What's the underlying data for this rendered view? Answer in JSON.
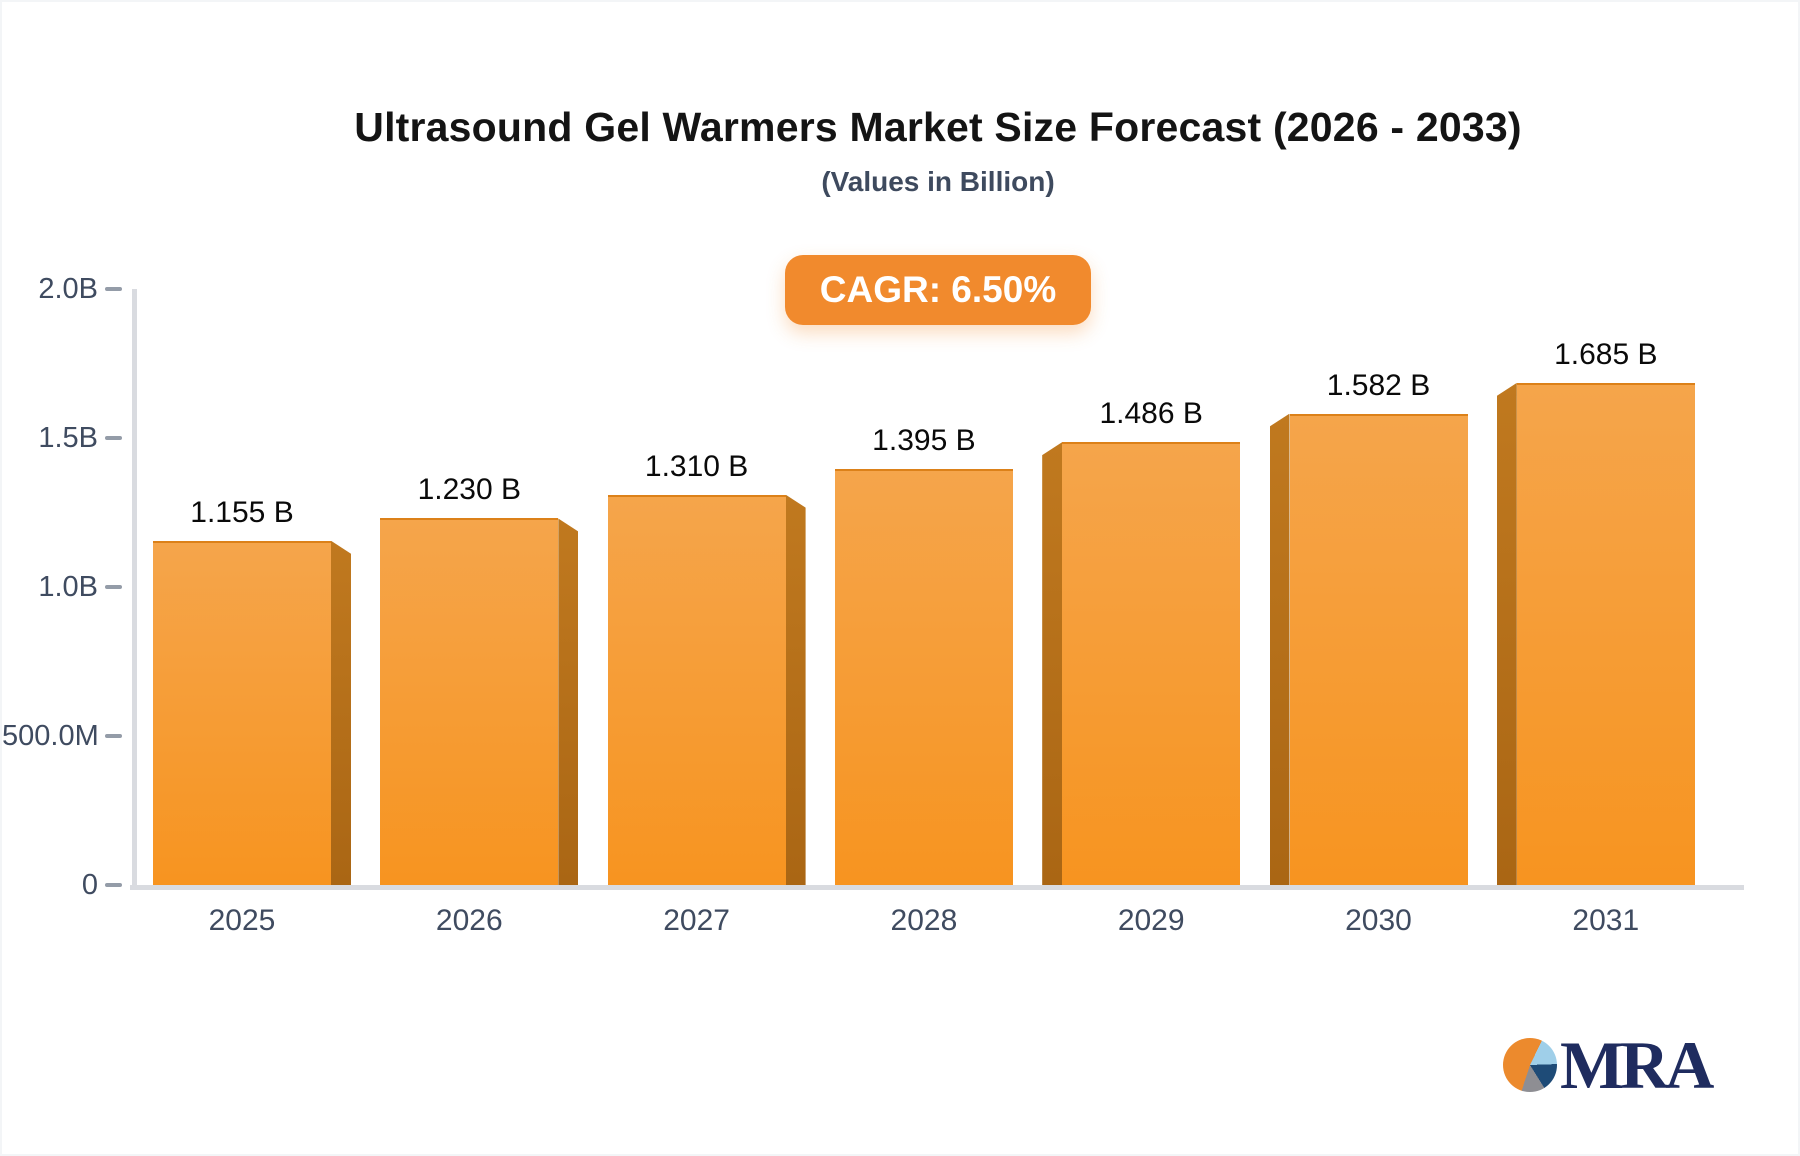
{
  "header": {
    "title": "Ultrasound Gel Warmers Market Size Forecast (2026 - 2033)",
    "subtitle": "(Values in Billion)",
    "cagr_label": "CAGR: 6.50%"
  },
  "branding": {
    "logo_text": "MRA",
    "logo_icon": "pie-chart-icon"
  },
  "chart_data": {
    "type": "bar",
    "title": "Ultrasound Gel Warmers Market Size Forecast (2026 - 2033)",
    "subtitle": "(Values in Billion)",
    "annotation": "CAGR: 6.50%",
    "categories": [
      "2025",
      "2026",
      "2027",
      "2028",
      "2029",
      "2030",
      "2031"
    ],
    "values": [
      1.155,
      1.23,
      1.31,
      1.395,
      1.486,
      1.582,
      1.685
    ],
    "value_labels": [
      "1.155 B",
      "1.230 B",
      "1.310 B",
      "1.395 B",
      "1.486 B",
      "1.582 B",
      "1.685 B"
    ],
    "xlabel": "",
    "ylabel": "",
    "ylim": [
      0,
      2.0
    ],
    "yticks": [
      {
        "value": 2.0,
        "label": "2.0B"
      },
      {
        "value": 1.5,
        "label": "1.5B"
      },
      {
        "value": 1.0,
        "label": "1.0B"
      },
      {
        "value": 0.5,
        "label": "500.0M"
      },
      {
        "value": 0.0,
        "label": "0"
      }
    ],
    "grid": false,
    "legend": false,
    "bar_style_3d": true
  },
  "colors": {
    "background": "#FFFFFF",
    "bar_top": "#F5A54B",
    "bar_bottom": "#F79420",
    "bar_side_top": "#C0791F",
    "bar_side_bottom": "#AA6614",
    "badge_bg": "#F18A2D",
    "badge_text": "#FFFFFF",
    "title_text": "#141414",
    "subtitle_text": "#3E4A5E",
    "axis_text": "#3F4B60",
    "value_label_text": "#0A0A0A",
    "axis_line": "#D9DBE0",
    "tick_dash": "#949CA8",
    "logo_navy": "#1F2C5F",
    "logo_pie_orange": "#EC8A2D",
    "logo_pie_lightblue": "#9FCFE9",
    "logo_pie_navy": "#1E4B77",
    "logo_pie_gray": "#8E8E93"
  }
}
